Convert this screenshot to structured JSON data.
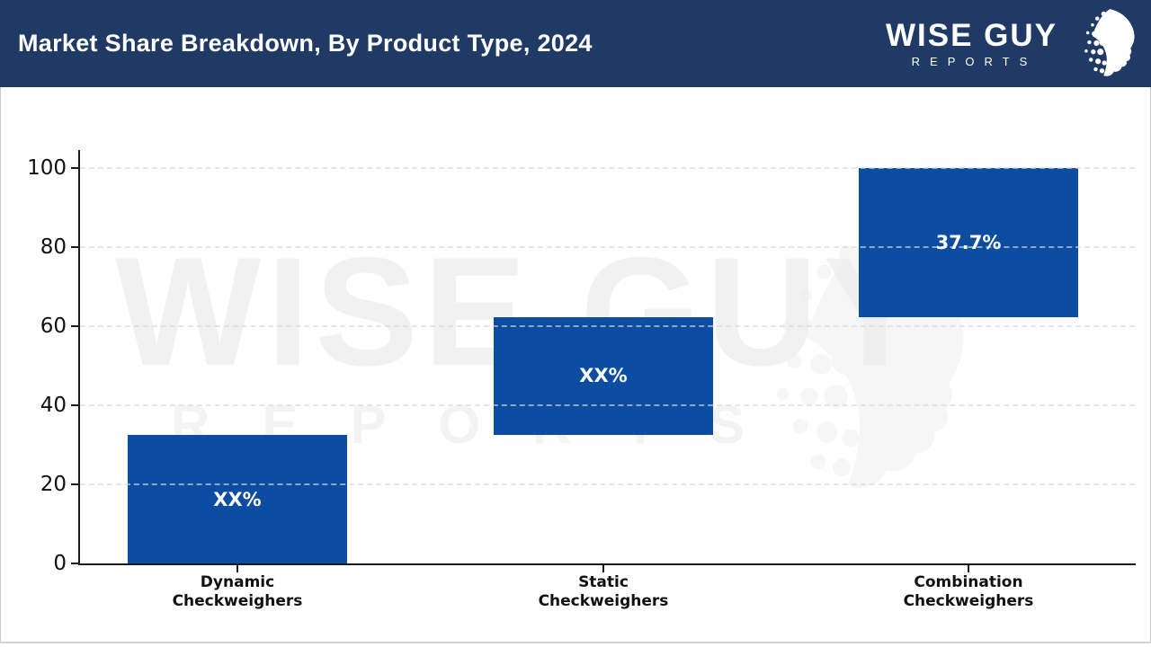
{
  "header": {
    "title": "Market Share Breakdown, By Product Type, 2024",
    "background_color": "#203a66",
    "logo": {
      "line1": "WISE GUY",
      "line2": "REPORTS"
    }
  },
  "watermark": {
    "line1": "WISE GUY",
    "line2": "REPORTS"
  },
  "chart_data": {
    "type": "bar",
    "variant": "waterfall",
    "title": "Market Share Breakdown, By Product Type, 2024",
    "categories": [
      [
        "Dynamic",
        "Checkweighers"
      ],
      [
        "Static",
        "Checkweighers"
      ],
      [
        "Combination",
        "Checkweighers"
      ]
    ],
    "bars": [
      {
        "category": "Dynamic Checkweighers",
        "start": 0,
        "end": 32.5,
        "value_label": "XX%"
      },
      {
        "category": "Static Checkweighers",
        "start": 32.5,
        "end": 62.3,
        "value_label": "XX%"
      },
      {
        "category": "Combination Checkweighers",
        "start": 62.3,
        "end": 100,
        "value_label": "37.7%"
      }
    ],
    "yticks": [
      0,
      20,
      40,
      60,
      80,
      100
    ],
    "ylim": [
      0,
      104
    ],
    "xlabel": "",
    "ylabel": "",
    "grid": "horizontal-dashed",
    "legend": false,
    "bar_color": "#0d4da1",
    "bar_label_color": "#ffffff"
  }
}
